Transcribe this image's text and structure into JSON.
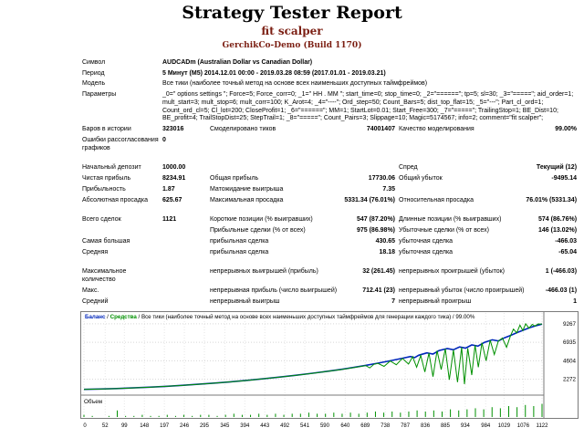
{
  "header": {
    "title": "Strategy Tester Report",
    "ea_name": "fit scalper",
    "server": "GerchikCo-Demo (Build 1170)"
  },
  "report": {
    "info_rows": [
      {
        "label": "Символ",
        "value": "AUDCADm (Australian Dollar vs Canadian Dollar)",
        "bold": true
      },
      {
        "label": "Период",
        "value": "5 Минут (M5) 2014.12.01 00:00 - 2019.03.28 08:59 (2017.01.01 - 2019.03.21)",
        "bold": true
      },
      {
        "label": "Модель",
        "value": "Все тики (наиболее точный метод на основе всех наименьших доступных таймфреймов)",
        "bold": false
      },
      {
        "label": "Параметры",
        "value": "_0=\" options settings \"; Force=5; Force_corr=0; _1=\" HH . MM \"; start_time=0; stop_time=0; _2=\"======\"; tp=5; sl=30; _3=\"=====\"; aid_order=1; mult_start=3; mult_stop=6; mult_corr=100; K_Arot=4; _4=\"----\"; Ord_step=50; Count_Bars=5; dist_top_flat=15; _5=\"---\"; Part_cl_ord=1; Count_ord_cl=5; Cl_lot=200; CloseProfit=1; _6=\"======\"; MM=1; StartLot=0.01; Start_Free=300; _7=\"=====\"; TrailingStop=1; BE_Dist=10; BE_profit=4; TrailStopDist=25; StepTrail=1; _8=\"=====\"; Count_Pairs=3; Slippage=10; Magic=5174567; info=2; comment=\"fit scalper\";",
        "bold": false
      }
    ],
    "stats_rows": [
      {
        "cells": [
          "Баров в истории",
          "323016",
          "Смоделировано тиков",
          "74001407",
          "Качество моделирования",
          "99.00%"
        ]
      },
      {
        "cells": [
          "Ошибки рассогласования графиков",
          "0",
          "",
          "",
          "",
          ""
        ]
      },
      {
        "gap": true
      },
      {
        "cells": [
          "Начальный депозит",
          "1000.00",
          "",
          "",
          "Спред",
          "Текущий (12)"
        ]
      },
      {
        "cells": [
          "Чистая прибыль",
          "8234.91",
          "Общая прибыль",
          "17730.06",
          "Общий убыток",
          "-9495.14"
        ]
      },
      {
        "cells": [
          "Прибыльность",
          "1.87",
          "Матожидание выигрыша",
          "7.35",
          "",
          ""
        ]
      },
      {
        "cells": [
          "Абсолютная просадка",
          "625.67",
          "Максимальная просадка",
          "5331.34 (76.01%)",
          "Относительная просадка",
          "76.01% (5331.34)"
        ]
      },
      {
        "gap": true
      },
      {
        "cells": [
          "Всего сделок",
          "1121",
          "Короткие позиции (% выигравших)",
          "547 (87.20%)",
          "Длинные позиции (% выигравших)",
          "574 (86.76%)"
        ]
      },
      {
        "cells": [
          "",
          "",
          "Прибыльные сделки (% от всех)",
          "975 (86.98%)",
          "Убыточные сделки (% от всех)",
          "146 (13.02%)"
        ]
      },
      {
        "cells": [
          "Самая большая",
          "",
          "прибыльная сделка",
          "430.65",
          "убыточная сделка",
          "-466.03"
        ]
      },
      {
        "cells": [
          "Средняя",
          "",
          "прибыльная сделка",
          "18.18",
          "убыточная сделка",
          "-65.04"
        ]
      },
      {
        "gap": true
      },
      {
        "cells": [
          "Максимальное количество",
          "",
          "непрерывных выигрышей (прибыль)",
          "32 (261.45)",
          "непрерывных проигрышей (убыток)",
          "1 (-466.03)"
        ]
      },
      {
        "cells": [
          "Макс.",
          "",
          "непрерывная прибыль (число выигрышей)",
          "712.41 (23)",
          "непрерывный убыток (число проигрышей)",
          "-466.03 (1)"
        ]
      },
      {
        "cells": [
          "Средний",
          "",
          "непрерывный выигрыш",
          "7",
          "непрерывный проигрыш",
          "1"
        ]
      }
    ]
  },
  "chart_data": {
    "type": "line",
    "header_parts": {
      "balance_label": "Баланс",
      "equity_label": "Средства",
      "rest": "Все тики (наиболее точный метод на основе всех наименьших доступных таймфреймов для генерации каждого тика) / 99.00%"
    },
    "colors": {
      "balance": "#0026bb",
      "equity": "#009000",
      "grid": "#d6d6d6",
      "border": "#7a7a7a"
    },
    "x_range": [
      0,
      1122
    ],
    "y_range": [
      500,
      9600
    ],
    "x_ticks": [
      0,
      52,
      99,
      148,
      197,
      246,
      295,
      345,
      394,
      443,
      492,
      541,
      590,
      640,
      689,
      738,
      787,
      836,
      885,
      934,
      984,
      1029,
      1076,
      1122
    ],
    "y_gridlines": [
      9267,
      6935,
      4604,
      2272
    ],
    "series": [
      {
        "name": "Баланс",
        "points": [
          [
            0,
            1000
          ],
          [
            40,
            1040
          ],
          [
            80,
            1100
          ],
          [
            120,
            1180
          ],
          [
            160,
            1270
          ],
          [
            200,
            1380
          ],
          [
            240,
            1500
          ],
          [
            280,
            1640
          ],
          [
            320,
            1790
          ],
          [
            360,
            1950
          ],
          [
            400,
            2130
          ],
          [
            440,
            2330
          ],
          [
            480,
            2550
          ],
          [
            520,
            2780
          ],
          [
            560,
            3030
          ],
          [
            600,
            3300
          ],
          [
            630,
            3520
          ],
          [
            660,
            3760
          ],
          [
            690,
            4020
          ],
          [
            720,
            4300
          ],
          [
            750,
            4600
          ],
          [
            780,
            4920
          ],
          [
            800,
            5140
          ],
          [
            810,
            5000
          ],
          [
            820,
            5300
          ],
          [
            840,
            5600
          ],
          [
            855,
            5450
          ],
          [
            870,
            5900
          ],
          [
            890,
            6150
          ],
          [
            905,
            6000
          ],
          [
            920,
            6350
          ],
          [
            935,
            6200
          ],
          [
            950,
            6600
          ],
          [
            965,
            6450
          ],
          [
            980,
            6900
          ],
          [
            1000,
            7250
          ],
          [
            1015,
            7100
          ],
          [
            1030,
            7500
          ],
          [
            1045,
            7800
          ],
          [
            1060,
            8150
          ],
          [
            1075,
            8450
          ],
          [
            1090,
            8750
          ],
          [
            1105,
            9000
          ],
          [
            1122,
            9235
          ]
        ]
      },
      {
        "name": "Средства",
        "points": [
          [
            0,
            1000
          ],
          [
            80,
            1090
          ],
          [
            160,
            1260
          ],
          [
            240,
            1490
          ],
          [
            320,
            1780
          ],
          [
            400,
            2120
          ],
          [
            480,
            2540
          ],
          [
            520,
            2770
          ],
          [
            560,
            3020
          ],
          [
            600,
            3290
          ],
          [
            630,
            3500
          ],
          [
            660,
            3740
          ],
          [
            690,
            4000
          ],
          [
            700,
            3700
          ],
          [
            710,
            4150
          ],
          [
            720,
            4280
          ],
          [
            735,
            3900
          ],
          [
            750,
            4580
          ],
          [
            765,
            4100
          ],
          [
            780,
            4900
          ],
          [
            795,
            4200
          ],
          [
            805,
            5120
          ],
          [
            815,
            3800
          ],
          [
            825,
            5280
          ],
          [
            835,
            3200
          ],
          [
            845,
            5580
          ],
          [
            855,
            2600
          ],
          [
            865,
            5880
          ],
          [
            875,
            3500
          ],
          [
            885,
            6120
          ],
          [
            895,
            2200
          ],
          [
            905,
            5980
          ],
          [
            915,
            1900
          ],
          [
            925,
            6320
          ],
          [
            932,
            1650
          ],
          [
            940,
            6180
          ],
          [
            950,
            2800
          ],
          [
            958,
            6580
          ],
          [
            966,
            3800
          ],
          [
            975,
            6870
          ],
          [
            985,
            4600
          ],
          [
            995,
            7200
          ],
          [
            1005,
            5400
          ],
          [
            1015,
            7080
          ],
          [
            1025,
            7480
          ],
          [
            1035,
            6300
          ],
          [
            1045,
            7780
          ],
          [
            1052,
            8600
          ],
          [
            1060,
            8130
          ],
          [
            1068,
            9100
          ],
          [
            1075,
            8430
          ],
          [
            1082,
            9267
          ],
          [
            1090,
            8730
          ],
          [
            1098,
            9200
          ],
          [
            1105,
            8980
          ],
          [
            1112,
            9260
          ],
          [
            1122,
            9235
          ]
        ]
      }
    ],
    "volume": {
      "label": "Объем",
      "values": [
        2,
        1,
        0,
        1,
        6,
        1,
        1,
        2,
        1,
        1,
        2,
        1,
        2,
        1,
        2,
        2,
        1,
        2,
        3,
        2,
        2,
        3,
        2,
        3,
        2,
        3,
        3,
        4,
        3,
        3,
        4,
        3,
        4,
        3,
        4,
        5,
        4,
        5,
        4,
        5,
        6,
        5,
        6,
        5,
        7,
        6,
        7,
        8,
        7,
        9,
        8,
        10,
        9,
        11,
        10,
        12
      ]
    }
  }
}
